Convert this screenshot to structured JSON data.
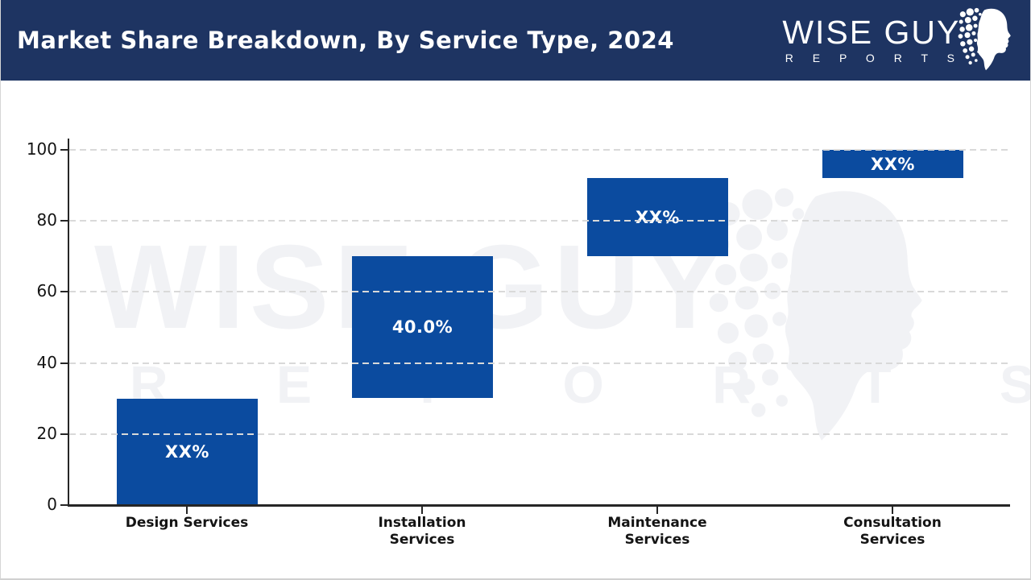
{
  "header": {
    "title": "Market Share Breakdown, By Service Type, 2024",
    "logo": {
      "wordmark": "WISE GUY",
      "subtext": "R E P O R T S"
    }
  },
  "watermark": {
    "wordmark": "WISE GUY",
    "subtext": "R E P O R T S"
  },
  "colors": {
    "header_bg": "#1e3462",
    "bar": "#0b4b9f",
    "grid": "#d9d9d9",
    "axis": "#262626",
    "watermark": "#f1f2f5"
  },
  "chart_data": {
    "type": "bar",
    "subtype": "waterfall",
    "title": "Market Share Breakdown, By Service Type, 2024",
    "categories": [
      "Design Services",
      "Installation\nServices",
      "Maintenance\nServices",
      "Consultation\nServices"
    ],
    "bars": [
      {
        "category": "Design Services",
        "start": 0,
        "end": 30,
        "label": "XX%"
      },
      {
        "category": "Installation Services",
        "start": 30,
        "end": 70,
        "label": "40.0%"
      },
      {
        "category": "Maintenance Services",
        "start": 70,
        "end": 92,
        "label": "XX%"
      },
      {
        "category": "Consultation Services",
        "start": 92,
        "end": 100,
        "label": "XX%"
      }
    ],
    "ylim": [
      0,
      100
    ],
    "yticks": [
      0,
      20,
      40,
      60,
      80,
      100
    ],
    "grid": "horizontal-dashed",
    "legend": false,
    "bar_color": "#0b4b9f",
    "bar_label_color": "#ffffff"
  }
}
